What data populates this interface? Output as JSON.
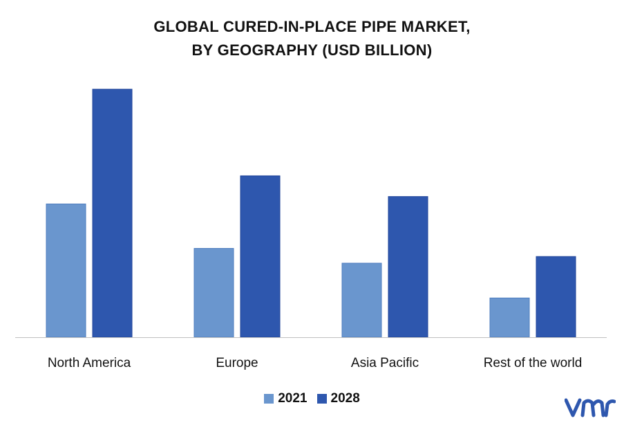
{
  "chart_data": {
    "type": "bar",
    "title": [
      "GLOBAL CURED-IN-PLACE PIPE MARKET,",
      "BY GEOGRAPHY (USD BILLION)"
    ],
    "xlabel": "",
    "ylabel": "",
    "categories": [
      "North America",
      "Europe",
      "Asia Pacific",
      "Rest of the world"
    ],
    "series": [
      {
        "name": "2021",
        "color": "#6A96CE",
        "values": [
          1.8,
          1.2,
          1.0,
          0.53
        ]
      },
      {
        "name": "2028",
        "color": "#2E57AE",
        "values": [
          3.35,
          2.18,
          1.9,
          1.09
        ]
      }
    ],
    "ylim": [
      0,
      3.5
    ],
    "grid": false,
    "legend_position": "bottom-center"
  },
  "branding": {
    "logo_icon": "vmr-logo-icon",
    "logo_color": "#2E57AE"
  }
}
